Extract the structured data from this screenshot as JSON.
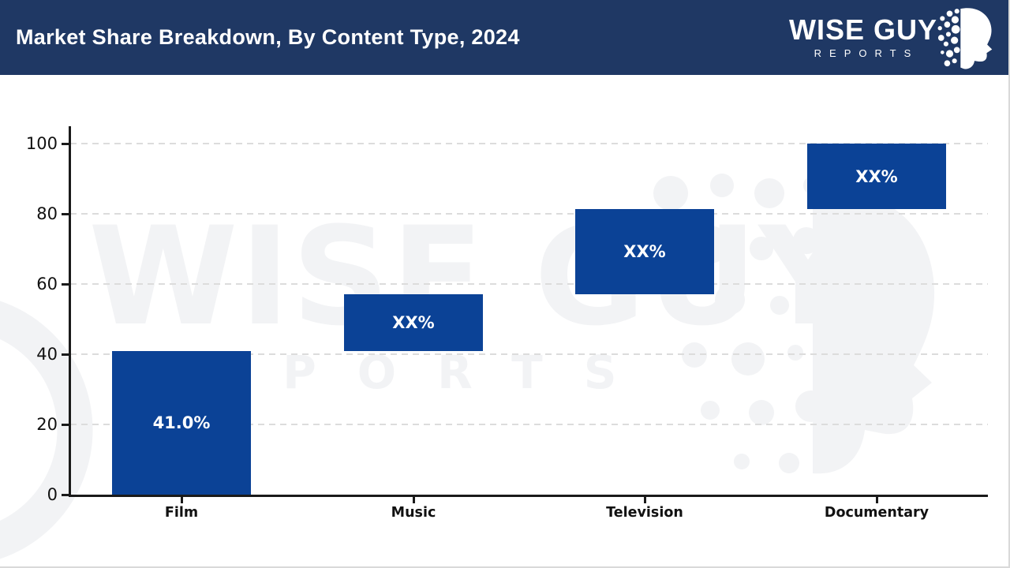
{
  "header": {
    "title": "Market Share Breakdown, By Content Type, 2024",
    "bg_color": "#1F3864",
    "logo": {
      "line1": "WISE GUY",
      "line2": "REPORTS"
    }
  },
  "watermark": {
    "line1": "WISE GUY",
    "line2": "REPORTS"
  },
  "chart_data": {
    "type": "bar",
    "variant": "waterfall",
    "title": "Market Share Breakdown, By Content Type, 2024",
    "categories": [
      "Film",
      "Music",
      "Television",
      "Documentary"
    ],
    "segments": [
      {
        "category": "Film",
        "start": 0,
        "end": 41,
        "value": 41,
        "label": "41.0%"
      },
      {
        "category": "Music",
        "start": 41,
        "end": 57,
        "value": 16,
        "label": "XX%"
      },
      {
        "category": "Television",
        "start": 57,
        "end": 81.3,
        "value": 24.3,
        "label": "XX%"
      },
      {
        "category": "Documentary",
        "start": 81.3,
        "end": 100,
        "value": 18.7,
        "label": "XX%"
      }
    ],
    "xlabel": "",
    "ylabel": "",
    "ylim": [
      0,
      105
    ],
    "yticks": [
      0,
      20,
      40,
      60,
      80,
      100
    ],
    "grid": "horizontal-dashed",
    "gridline_color": "#dcdcdc",
    "bar_color": "#0B4296",
    "bar_label_color": "#FFFFFF",
    "axis_color": "#1a1a1a",
    "legend": "none"
  }
}
